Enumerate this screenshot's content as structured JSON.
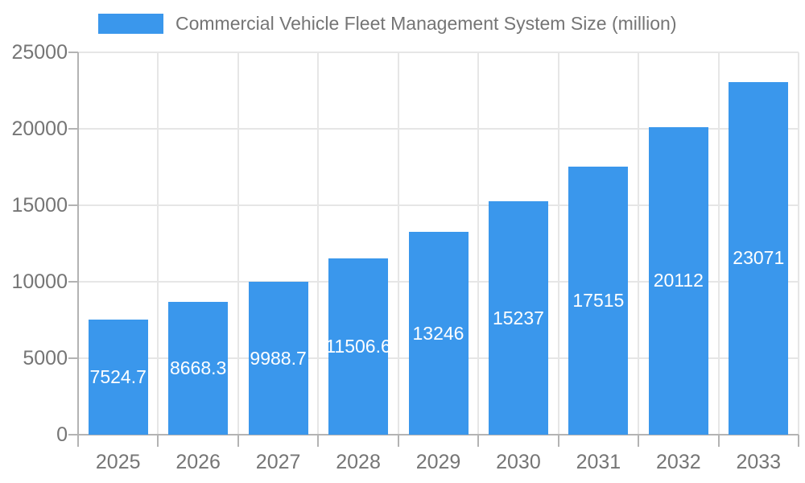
{
  "legend": {
    "label": "Commercial Vehicle Fleet Management System Size (million)",
    "position": "top"
  },
  "colors": {
    "bar": "#3A97EC",
    "bar_label_text": "#ffffff",
    "axis_text": "#757575",
    "gridline": "#e6e6e6",
    "axis_line": "#b3b3b3",
    "background": "#ffffff"
  },
  "chart_data": {
    "type": "bar",
    "title": "Commercial Vehicle Fleet Management System Size (million)",
    "xlabel": "",
    "ylabel": "",
    "categories": [
      "2025",
      "2026",
      "2027",
      "2028",
      "2029",
      "2030",
      "2031",
      "2032",
      "2033"
    ],
    "values": [
      7524.7,
      8668.3,
      9988.7,
      11506.6,
      13246,
      15237,
      17515,
      20112,
      23071
    ],
    "value_labels": [
      "7524.7",
      "8668.3",
      "9988.7",
      "11506.6",
      "13246",
      "15237",
      "17515",
      "20112",
      "23071"
    ],
    "ylim": [
      0,
      25000
    ],
    "yticks": [
      0,
      5000,
      10000,
      15000,
      20000,
      25000
    ],
    "ytick_labels": [
      "0",
      "5000",
      "10000",
      "15000",
      "20000",
      "25000"
    ],
    "grid": "on",
    "legend_position": "top",
    "bar_label_position": "inside-center"
  }
}
